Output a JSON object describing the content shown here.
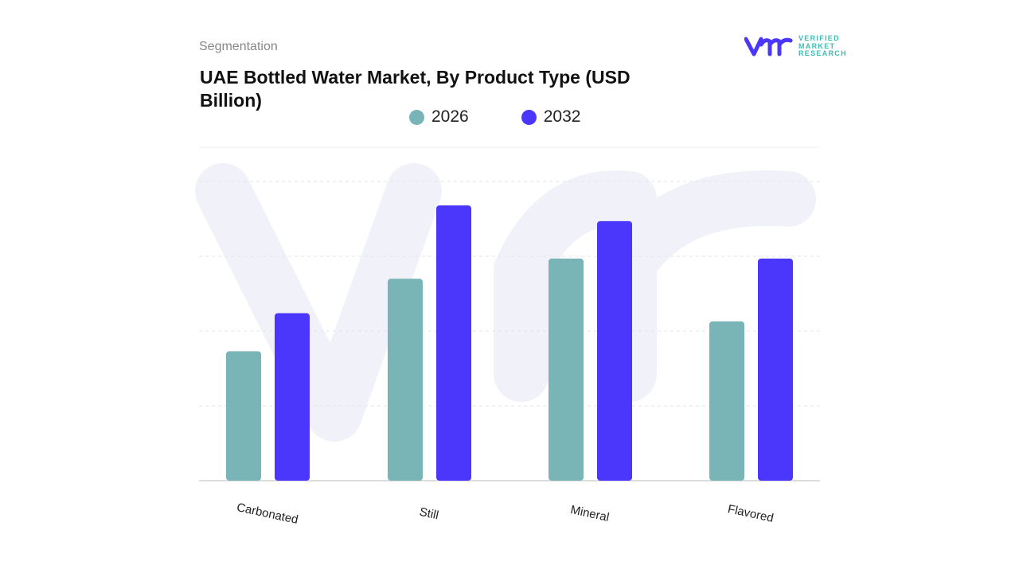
{
  "header": {
    "section": "Segmentation",
    "title": "UAE Bottled Water Market, By Product Type (USD Billion)"
  },
  "logo": {
    "text_lines": [
      "VERIFIED",
      "MARKET",
      "RESEARCH"
    ],
    "registered": "®"
  },
  "colors": {
    "2026": "#79b4b7",
    "2032": "#4b37fb",
    "watermark": "#eef0f8"
  },
  "chart_data": {
    "type": "bar",
    "title": "UAE Bottled Water Market, By Product Type (USD Billion)",
    "categories": [
      "Carbonated",
      "Still",
      "Mineral",
      "Flavored"
    ],
    "series": [
      {
        "name": "2026",
        "values": [
          1.73,
          2.7,
          2.97,
          2.13
        ]
      },
      {
        "name": "2032",
        "values": [
          2.24,
          3.68,
          3.47,
          2.97
        ]
      }
    ],
    "xlabel": "",
    "ylabel": "",
    "ylim": [
      0,
      4
    ],
    "y_axis_labels_shown": false,
    "grid": true,
    "legend_position": "top-center"
  }
}
